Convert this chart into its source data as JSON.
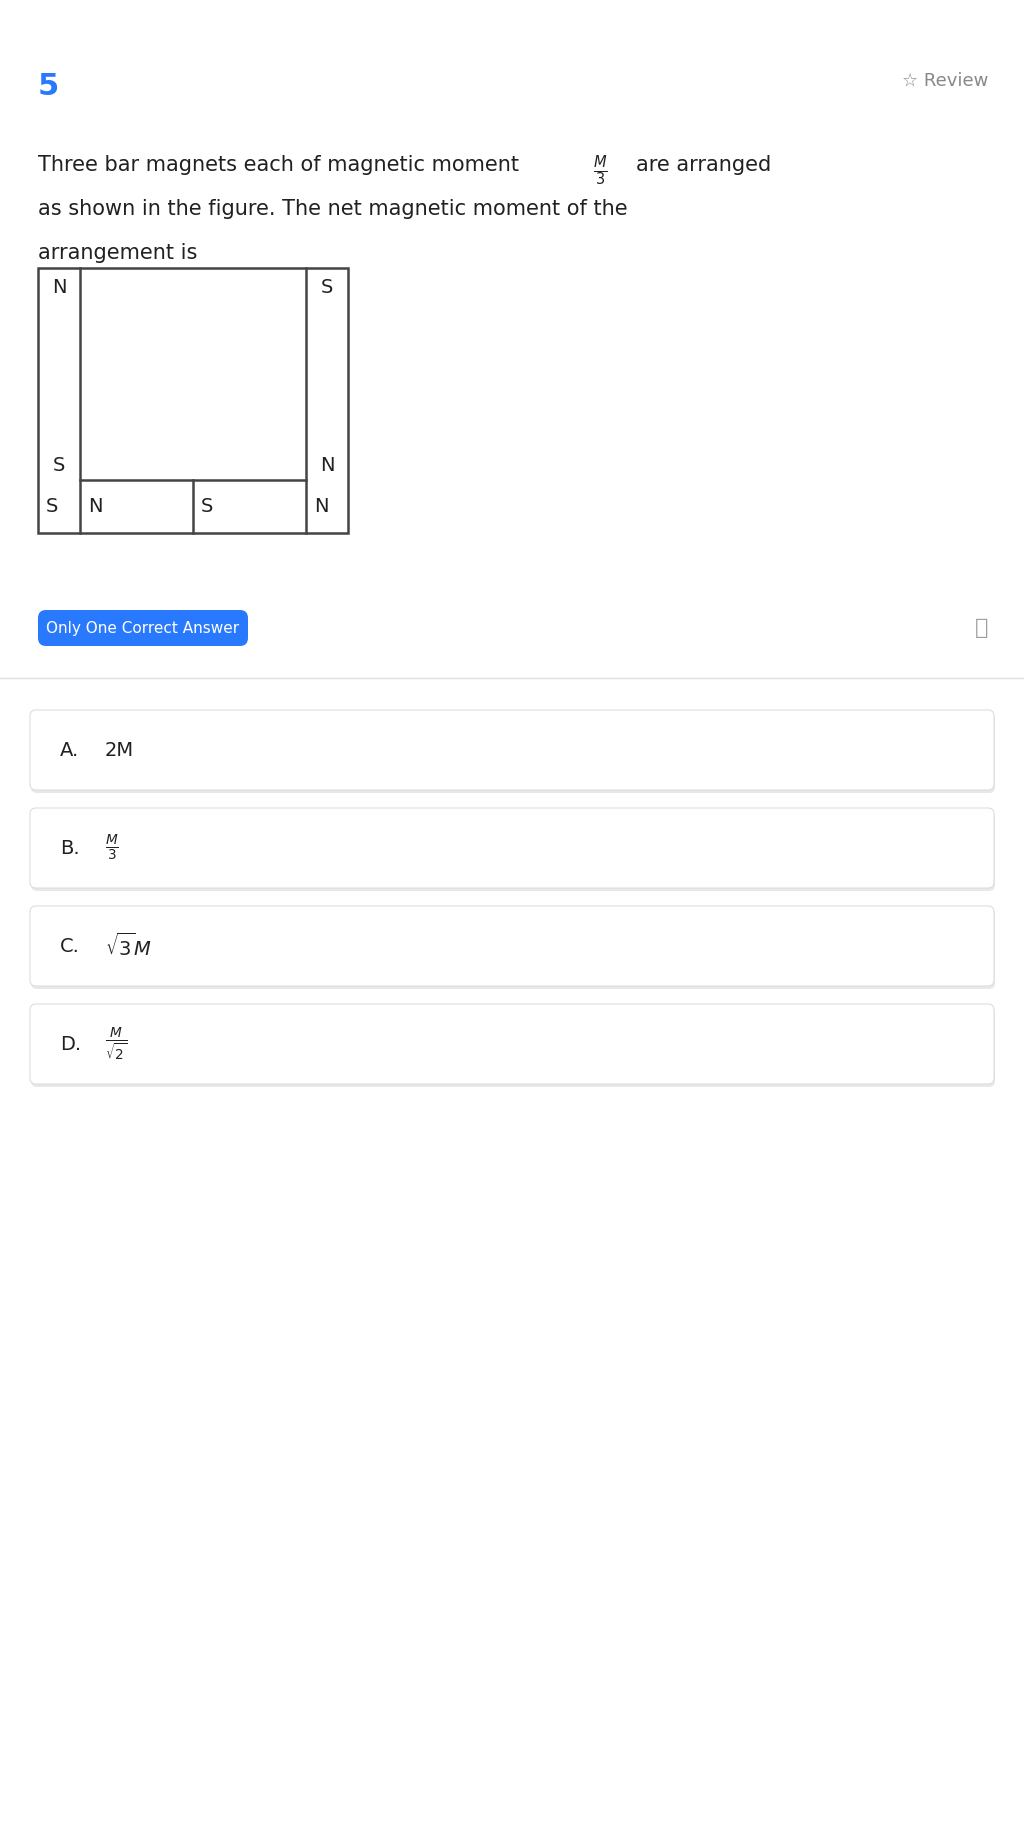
{
  "bg_color": "#ffffff",
  "page_bg": "#f0f0f5",
  "question_number": "5",
  "review_text": "☆ Review",
  "question_text_line1": "Three bar magnets each of magnetic moment",
  "question_text_line1_after": "are arranged",
  "question_text_line2": "as shown in the figure. The net magnetic moment of the",
  "question_text_line3": "arrangement is",
  "badge_text": "Only One Correct Answer",
  "badge_color": "#2979ff",
  "badge_text_color": "#ffffff",
  "option_box_color": "#ffffff",
  "option_border_color": "#dddddd",
  "option_shadow_color": "#e8e8e8",
  "text_color": "#212121",
  "gray_color": "#888888",
  "number_color": "#2979ff",
  "info_circle_color": "#9e9e9e",
  "magnet_line_color": "#444444",
  "separator_color": "#e0e0e0"
}
